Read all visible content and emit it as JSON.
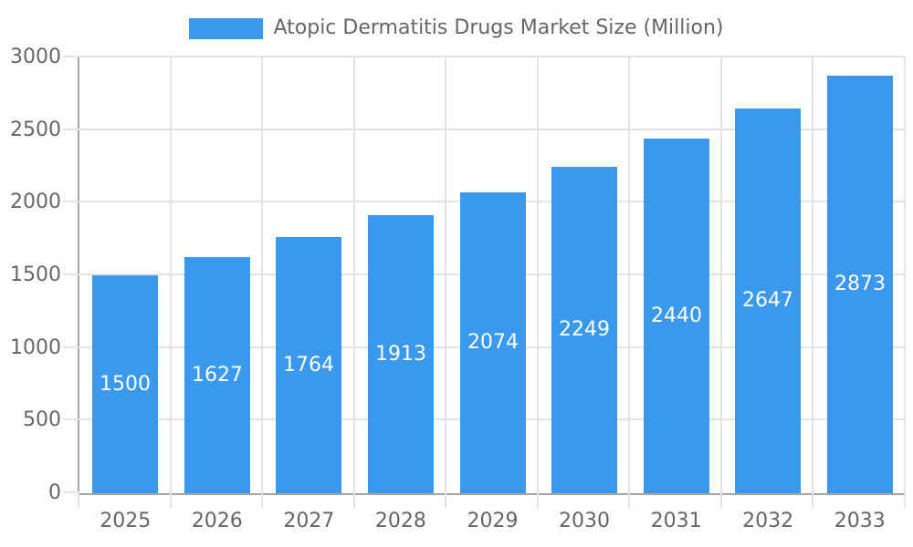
{
  "chart_data": {
    "type": "bar",
    "title": "Atopic Dermatitis Drugs Market Size (Million)",
    "categories": [
      "2025",
      "2026",
      "2027",
      "2028",
      "2029",
      "2030",
      "2031",
      "2032",
      "2033"
    ],
    "values": [
      1500,
      1627,
      1764,
      1913,
      2074,
      2249,
      2440,
      2647,
      2873
    ],
    "xlabel": "",
    "ylabel": "",
    "ylim": [
      0,
      3000
    ],
    "ytick_interval": 500,
    "yticks": [
      0,
      500,
      1000,
      1500,
      2000,
      2500,
      3000
    ],
    "grid": true,
    "legend_position": "top",
    "value_labels": "inside-center"
  },
  "colors": {
    "bar": "#3a99ec",
    "bar_label": "#ffffff",
    "gridline": "#e3e3e3",
    "spine": "#a6a6a6",
    "text": "#666666",
    "background": "#ffffff"
  }
}
